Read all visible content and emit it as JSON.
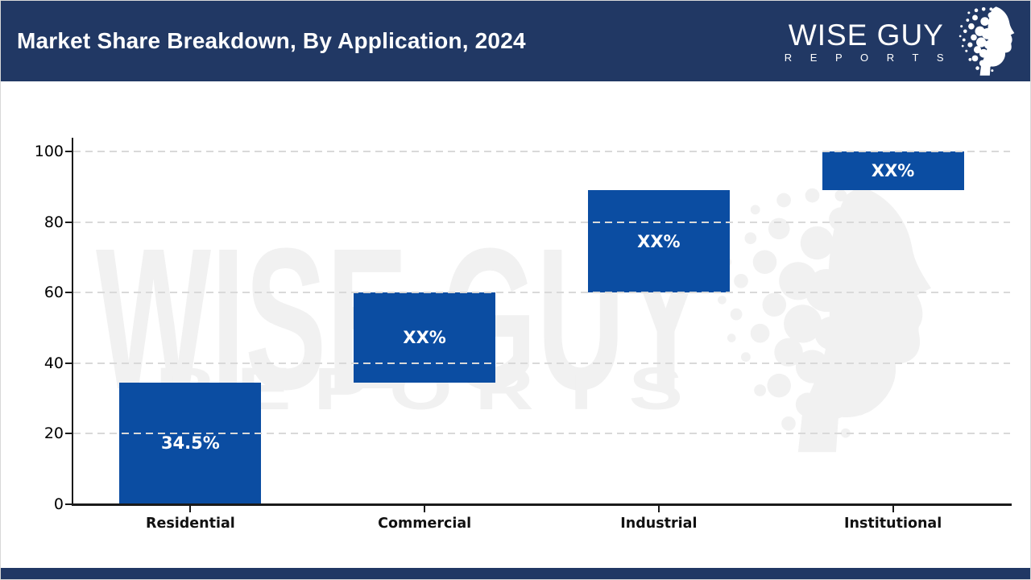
{
  "header": {
    "title": "Market Share Breakdown, By Application, 2024",
    "bg_color": "#213864",
    "logo": {
      "line1": "WISE GUY",
      "line2": "R E P O R T S"
    }
  },
  "watermark": {
    "line1": "WISE GUY",
    "line2": "R E P O R T S",
    "color": "#f1f1f1"
  },
  "footer": {
    "bg_color": "#213864"
  },
  "chart_data": {
    "type": "bar",
    "subtype": "waterfall",
    "title": "Market Share Breakdown, By Application, 2024",
    "categories": [
      "Residential",
      "Commercial",
      "Industrial",
      "Institutional"
    ],
    "bars": [
      {
        "category": "Residential",
        "start": 0,
        "end": 34.5,
        "label": "34.5%"
      },
      {
        "category": "Commercial",
        "start": 34.5,
        "end": 60,
        "label": "XX%"
      },
      {
        "category": "Industrial",
        "start": 60,
        "end": 89,
        "label": "XX%"
      },
      {
        "category": "Institutional",
        "start": 89,
        "end": 100,
        "label": "XX%"
      }
    ],
    "segment_sizes": [
      34.5,
      25.5,
      29,
      11
    ],
    "xlabel": "",
    "ylabel": "",
    "ylim": [
      0,
      100
    ],
    "yticks": [
      0,
      20,
      40,
      60,
      80,
      100
    ],
    "grid": "horizontal-dashed",
    "grid_on_top_of_bars": true,
    "legend": "none",
    "bar_color": "#0b4da2",
    "bar_label_color": "#ffffff",
    "grid_color": "#d9d9d9",
    "axis_color": "#1a1a1a",
    "tick_label_color": "#000000"
  }
}
